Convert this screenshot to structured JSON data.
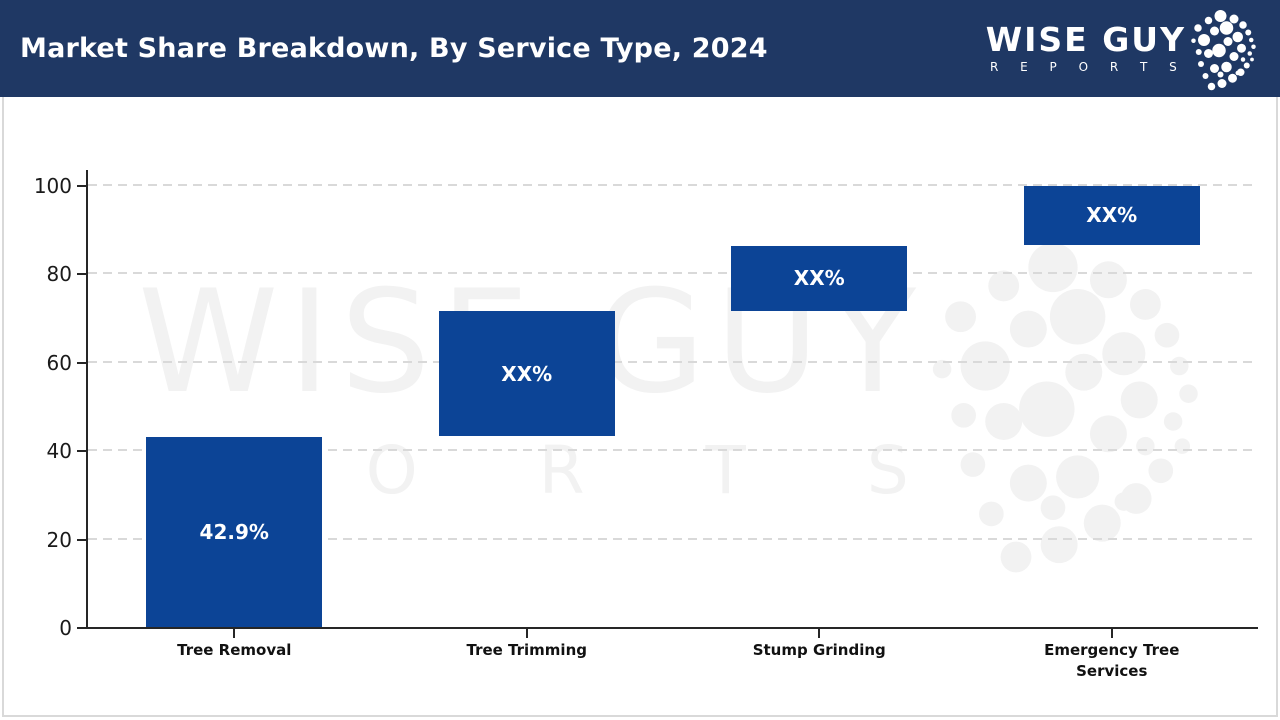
{
  "header": {
    "title": "Market Share Breakdown, By Service Type, 2024",
    "logo": {
      "line1": "WISE GUY",
      "line2": "R E P O R T S",
      "icon": "dotted-head-profile"
    }
  },
  "watermark": {
    "line1": "WISE GUY",
    "line2": "P O R T S",
    "icon": "dotted-head-profile"
  },
  "colors": {
    "header_bg": "#1F3864",
    "bar": "#0C4496",
    "bar_label": "#ffffff",
    "grid": "#d9d9d9",
    "axis": "#262626",
    "watermark": "#f2f2f2"
  },
  "chart_data": {
    "type": "bar",
    "subtype": "waterfall",
    "title": "Market Share Breakdown, By Service Type, 2024",
    "categories": [
      "Tree Removal",
      "Tree Trimming",
      "Stump Grinding",
      "Emergency Tree Services"
    ],
    "segments": [
      {
        "start": 0,
        "end": 42.9,
        "label": "42.9%"
      },
      {
        "start": 43.1,
        "end": 71.4,
        "label": "XX%"
      },
      {
        "start": 71.6,
        "end": 86.3,
        "label": "XX%"
      },
      {
        "start": 86.4,
        "end": 99.8,
        "label": "XX%"
      }
    ],
    "xlabel": "",
    "ylabel": "",
    "ylim": [
      0,
      100
    ],
    "yticks": [
      0,
      20,
      40,
      60,
      80,
      100
    ],
    "grid": "horizontal-dashed",
    "legend": "none"
  }
}
